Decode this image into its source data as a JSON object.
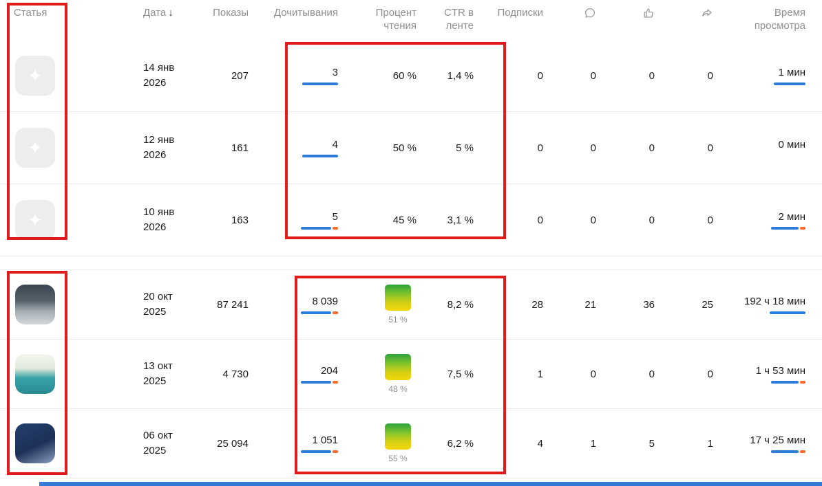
{
  "table": {
    "headers": {
      "article": "Статья",
      "date": "Дата",
      "sort_arrow": "↓",
      "impressions": "Показы",
      "reads": "Дочитывания",
      "read_percent": "Процент чтения",
      "ctr": "CTR в ленте",
      "subscriptions": "Подписки",
      "comments_icon": "comment-icon",
      "likes_icon": "like-icon",
      "shares_icon": "share-icon",
      "time": "Время просмотра"
    },
    "rows": [
      {
        "date": "14 янв 2026",
        "impressions": "207",
        "reads": "3",
        "read_percent": "60 %",
        "ctr": "1,4 %",
        "subscriptions": "0",
        "comments": "0",
        "likes": "0",
        "shares": "0",
        "time": "1 мин",
        "bars": {
          "reads": [
            52,
            0
          ],
          "time": [
            46,
            0
          ]
        }
      },
      {
        "date": "12 янв 2026",
        "impressions": "161",
        "reads": "4",
        "read_percent": "50 %",
        "ctr": "5 %",
        "subscriptions": "0",
        "comments": "0",
        "likes": "0",
        "shares": "0",
        "time": "0 мин",
        "bars": {
          "reads": [
            52,
            0
          ],
          "time": [
            0,
            0
          ]
        }
      },
      {
        "date": "10 янв 2026",
        "impressions": "163",
        "reads": "5",
        "read_percent": "45 %",
        "ctr": "3,1 %",
        "subscriptions": "0",
        "comments": "0",
        "likes": "0",
        "shares": "0",
        "time": "2 мин",
        "bars": {
          "reads": [
            44,
            8
          ],
          "time": [
            40,
            8
          ]
        }
      },
      {
        "date": "20 окт 2025",
        "impressions": "87 241",
        "reads": "8 039",
        "percent_sub": "51 %",
        "ctr": "8,2 %",
        "subscriptions": "28",
        "comments": "21",
        "likes": "36",
        "shares": "25",
        "time": "192 ч 18 мин",
        "bars": {
          "reads": [
            44,
            8
          ],
          "time": [
            52,
            0
          ]
        }
      },
      {
        "date": "13 окт 2025",
        "impressions": "4 730",
        "reads": "204",
        "percent_sub": "48 %",
        "ctr": "7,5 %",
        "subscriptions": "1",
        "comments": "0",
        "likes": "0",
        "shares": "0",
        "time": "1 ч 53 мин",
        "bars": {
          "reads": [
            44,
            8
          ],
          "time": [
            40,
            8
          ]
        }
      },
      {
        "date": "06 окт 2025",
        "impressions": "25 094",
        "reads": "1 051",
        "percent_sub": "55 %",
        "ctr": "6,2 %",
        "subscriptions": "4",
        "comments": "1",
        "likes": "5",
        "shares": "1",
        "time": "17 ч 25 мин",
        "bars": {
          "reads": [
            44,
            8
          ],
          "time": [
            40,
            8
          ]
        }
      }
    ]
  },
  "colors": {
    "accent_blue": "#2b7cd9",
    "accent_orange": "#fb6a2a",
    "annotation_red": "#e01b1b",
    "header_gray": "#8f8f8f"
  }
}
